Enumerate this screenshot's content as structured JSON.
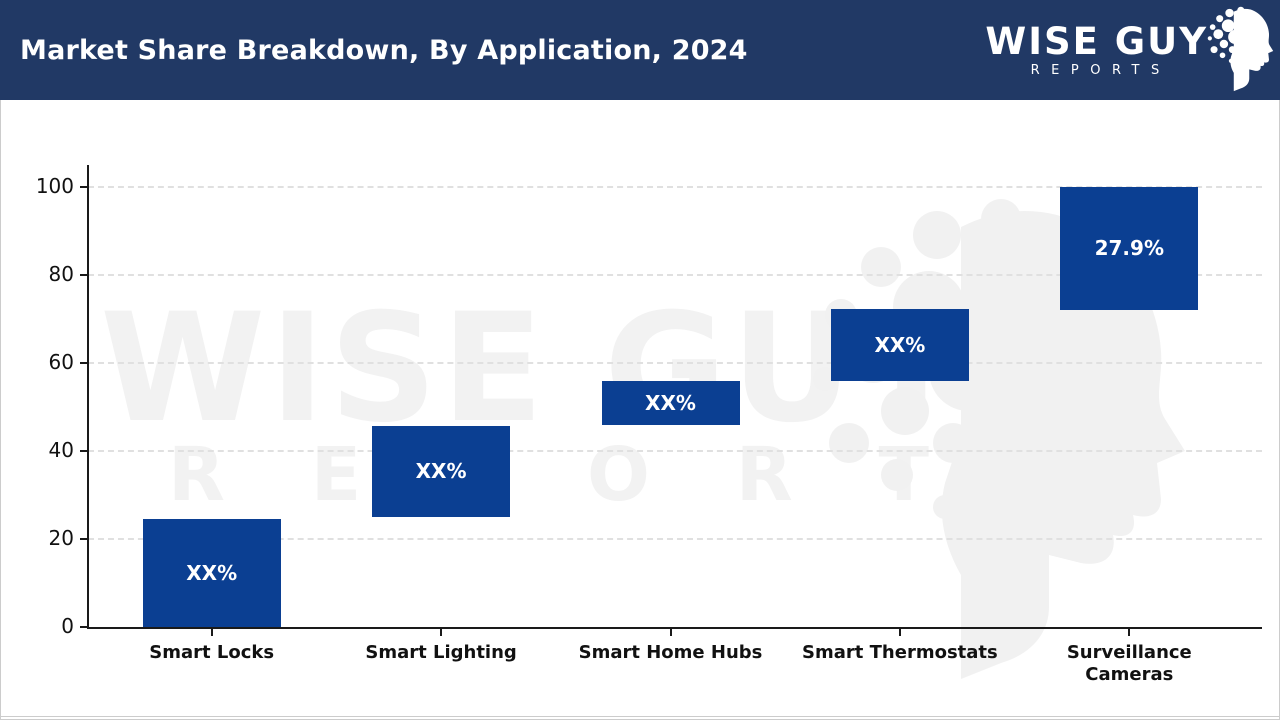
{
  "page": {
    "background": "#ffffff",
    "border_color": "#cccccc"
  },
  "header": {
    "background": "#213965",
    "title": "Market Share Breakdown, By Application, 2024",
    "logo": {
      "line1": "WISE GUY",
      "line2": "REPORTS"
    }
  },
  "watermark": {
    "line1": "WISE GUY",
    "line2": "R E P O R T S"
  },
  "chart_data": {
    "type": "bar",
    "subtype": "cumulative-waterfall",
    "title": "Market Share Breakdown, By Application, 2024",
    "categories": [
      "Smart Locks",
      "Smart Lighting",
      "Smart Home Hubs",
      "Smart Thermostats",
      "Surveillance Cameras"
    ],
    "category_label_lines": [
      [
        "Smart Locks"
      ],
      [
        "Smart Lighting"
      ],
      [
        "Smart Home Hubs"
      ],
      [
        "Smart Thermostats"
      ],
      [
        "Surveillance",
        "Cameras"
      ]
    ],
    "segments": [
      {
        "category": "Smart Locks",
        "start": 0,
        "end": 24.5,
        "label": "XX%"
      },
      {
        "category": "Smart Lighting",
        "start": 25,
        "end": 45.7,
        "label": "XX%"
      },
      {
        "category": "Smart Home Hubs",
        "start": 45.9,
        "end": 55.9,
        "label": "XX%"
      },
      {
        "category": "Smart Thermostats",
        "start": 55.9,
        "end": 72.3,
        "label": "XX%"
      },
      {
        "category": "Surveillance Cameras",
        "start": 72.1,
        "end": 100,
        "label": "27.9%"
      }
    ],
    "ylim": [
      0,
      105
    ],
    "yticks": [
      0,
      20,
      40,
      60,
      80,
      100
    ],
    "grid": "horizontal-dashed",
    "legend": "none",
    "colors": {
      "bar": "#0b3f92",
      "bar_label": "#ffffff",
      "axis": "#1a1a1a",
      "grid": "#e0e0e0",
      "tick_label": "#111111",
      "watermark": "#f2f2f2"
    }
  }
}
